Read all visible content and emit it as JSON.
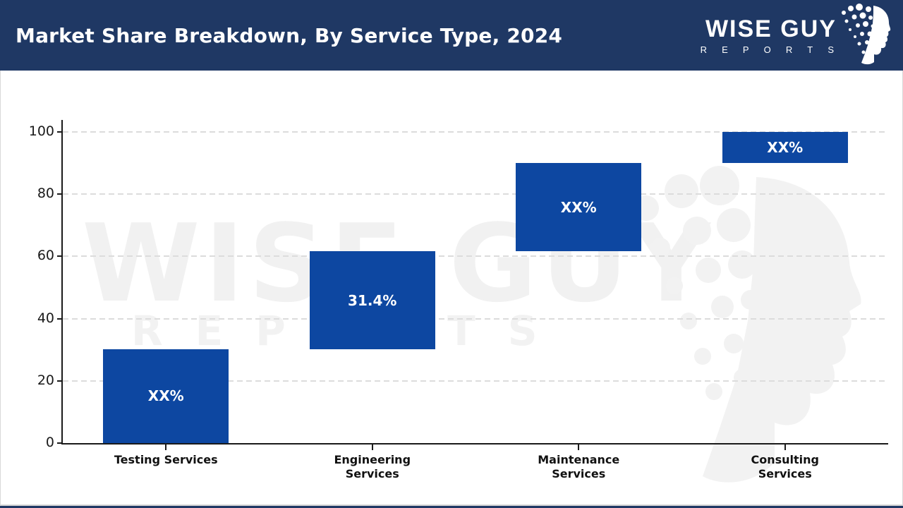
{
  "header": {
    "title": "Market Share Breakdown, By Service Type, 2024",
    "bg_color": "#1f3864",
    "brand": {
      "line1": "WISE GUY",
      "line2": "REPORTS"
    }
  },
  "watermark": {
    "line1": "WISE GUY",
    "line2": "REPORTS"
  },
  "chart_data": {
    "type": "bar",
    "subtype": "waterfall",
    "title": "Market Share Breakdown, By Service Type, 2024",
    "xlabel": "",
    "ylabel": "",
    "ylim": [
      0,
      105
    ],
    "y_ticks": [
      0,
      20,
      40,
      60,
      80,
      100
    ],
    "grid": "dashed-horizontal",
    "bar_color": "#0d47a1",
    "label_color": "#ffffff",
    "categories": [
      "Testing Services",
      "Engineering Services",
      "Maintenance Services",
      "Consulting Services"
    ],
    "category_lines": [
      [
        "Testing Services"
      ],
      [
        "Engineering",
        "Services"
      ],
      [
        "Maintenance",
        "Services"
      ],
      [
        "Consulting",
        "Services"
      ]
    ],
    "segments": [
      {
        "category": "Testing Services",
        "start": 0,
        "end": 30.2,
        "value": 30.2,
        "value_label": "XX%"
      },
      {
        "category": "Engineering Services",
        "start": 30.2,
        "end": 61.6,
        "value": 31.4,
        "value_label": "31.4%"
      },
      {
        "category": "Maintenance Services",
        "start": 61.6,
        "end": 90.0,
        "value": 28.4,
        "value_label": "XX%"
      },
      {
        "category": "Consulting Services",
        "start": 90.0,
        "end": 99.9,
        "value": 9.9,
        "value_label": "XX%"
      }
    ]
  }
}
